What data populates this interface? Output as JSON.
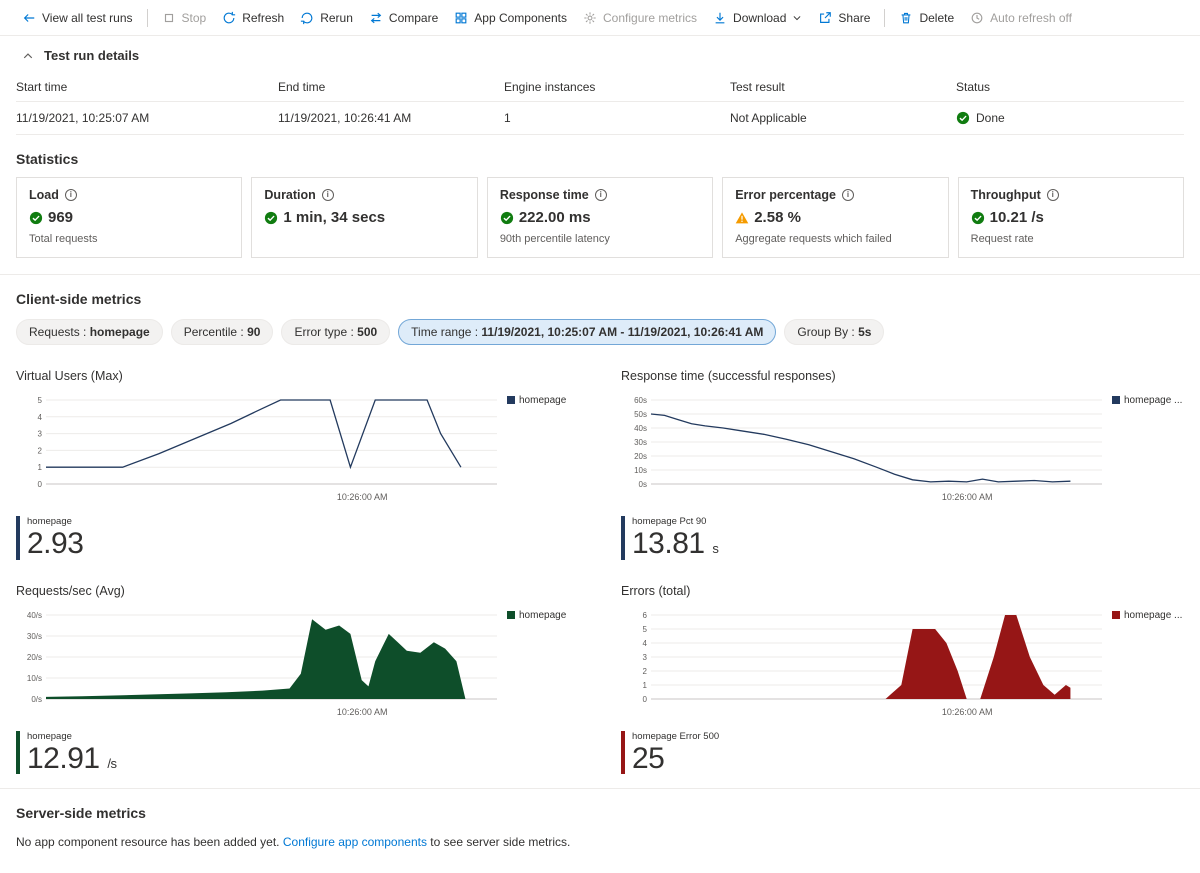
{
  "toolbar": {
    "items": [
      {
        "label": "View all test runs"
      },
      {
        "label": "Stop"
      },
      {
        "label": "Refresh"
      },
      {
        "label": "Rerun"
      },
      {
        "label": "Compare"
      },
      {
        "label": "App Components"
      },
      {
        "label": "Configure metrics"
      },
      {
        "label": "Download"
      },
      {
        "label": "Share"
      },
      {
        "label": "Delete"
      },
      {
        "label": "Auto refresh off"
      }
    ]
  },
  "test_run_details": {
    "title": "Test run details",
    "columns": [
      "Start time",
      "End time",
      "Engine instances",
      "Test result",
      "Status"
    ],
    "row": {
      "start_time": "11/19/2021, 10:25:07 AM",
      "end_time": "11/19/2021, 10:26:41 AM",
      "engine_instances": "1",
      "test_result": "Not Applicable",
      "status": "Done"
    }
  },
  "statistics": {
    "title": "Statistics",
    "cards": [
      {
        "title": "Load",
        "value": "969",
        "subtitle": "Total requests",
        "status": "ok"
      },
      {
        "title": "Duration",
        "value": "1 min, 34 secs",
        "subtitle": "",
        "status": "ok"
      },
      {
        "title": "Response time",
        "value": "222.00 ms",
        "subtitle": "90th percentile latency",
        "status": "ok"
      },
      {
        "title": "Error percentage",
        "value": "2.58 %",
        "subtitle": "Aggregate requests which failed",
        "status": "warning"
      },
      {
        "title": "Throughput",
        "value": "10.21 /s",
        "subtitle": "Request rate",
        "status": "ok"
      }
    ]
  },
  "client_metrics": {
    "title": "Client-side metrics",
    "pills": [
      {
        "label": "Requests : ",
        "value": "homepage",
        "selected": false
      },
      {
        "label": "Percentile : ",
        "value": "90",
        "selected": false
      },
      {
        "label": "Error type : ",
        "value": "500",
        "selected": false
      },
      {
        "label": "Time range : ",
        "value": "11/19/2021, 10:25:07 AM - 11/19/2021, 10:26:41 AM",
        "selected": true
      },
      {
        "label": "Group By : ",
        "value": "5s",
        "selected": false
      }
    ]
  },
  "charts": [
    {
      "type": "line",
      "title": "Virtual Users (Max)",
      "legend": "homepage",
      "color": "#233a5e",
      "ylim": [
        0,
        5
      ],
      "yticks": [
        {
          "v": 0,
          "label": "0"
        },
        {
          "v": 1,
          "label": "1"
        },
        {
          "v": 2,
          "label": "2"
        },
        {
          "v": 3,
          "label": "3"
        },
        {
          "v": 4,
          "label": "4"
        },
        {
          "v": 5,
          "label": "5"
        }
      ],
      "xlabel": "10:26:00 AM",
      "points": [
        [
          0,
          1
        ],
        [
          0.17,
          1
        ],
        [
          0.25,
          1.8
        ],
        [
          0.33,
          2.7
        ],
        [
          0.41,
          3.6
        ],
        [
          0.48,
          4.5
        ],
        [
          0.52,
          5
        ],
        [
          0.63,
          5
        ],
        [
          0.675,
          1
        ],
        [
          0.73,
          5
        ],
        [
          0.845,
          5
        ],
        [
          0.875,
          3
        ],
        [
          0.92,
          1
        ]
      ],
      "stat": {
        "label": "homepage",
        "value": "2.93",
        "unit": ""
      }
    },
    {
      "type": "line",
      "title": "Response time (successful responses)",
      "legend": "homepage ...",
      "color": "#233a5e",
      "ylim": [
        0,
        60
      ],
      "yticks": [
        {
          "v": 0,
          "label": "0s"
        },
        {
          "v": 10,
          "label": "10s"
        },
        {
          "v": 20,
          "label": "20s"
        },
        {
          "v": 30,
          "label": "30s"
        },
        {
          "v": 40,
          "label": "40s"
        },
        {
          "v": 50,
          "label": "50s"
        },
        {
          "v": 60,
          "label": "60s"
        }
      ],
      "xlabel": "10:26:00 AM",
      "points": [
        [
          0,
          50
        ],
        [
          0.03,
          49
        ],
        [
          0.06,
          46
        ],
        [
          0.09,
          43
        ],
        [
          0.12,
          41.5
        ],
        [
          0.16,
          40
        ],
        [
          0.2,
          38
        ],
        [
          0.25,
          35.5
        ],
        [
          0.3,
          32
        ],
        [
          0.35,
          28
        ],
        [
          0.4,
          23
        ],
        [
          0.45,
          18
        ],
        [
          0.5,
          12
        ],
        [
          0.54,
          7
        ],
        [
          0.58,
          3
        ],
        [
          0.62,
          1.5
        ],
        [
          0.66,
          2
        ],
        [
          0.7,
          1.5
        ],
        [
          0.735,
          3.5
        ],
        [
          0.77,
          1.5
        ],
        [
          0.81,
          2
        ],
        [
          0.85,
          2.5
        ],
        [
          0.89,
          1.5
        ],
        [
          0.93,
          2
        ]
      ],
      "stat": {
        "label": "homepage Pct 90",
        "value": "13.81",
        "unit": "s"
      }
    },
    {
      "type": "area",
      "title": "Requests/sec (Avg)",
      "legend": "homepage",
      "color": "#0e4e2a",
      "ylim": [
        0,
        40
      ],
      "yticks": [
        {
          "v": 0,
          "label": "0/s"
        },
        {
          "v": 10,
          "label": "10/s"
        },
        {
          "v": 20,
          "label": "20/s"
        },
        {
          "v": 30,
          "label": "30/s"
        },
        {
          "v": 40,
          "label": "40/s"
        }
      ],
      "xlabel": "10:26:00 AM",
      "points": [
        [
          0,
          1
        ],
        [
          0.08,
          1.3
        ],
        [
          0.16,
          1.7
        ],
        [
          0.24,
          2.2
        ],
        [
          0.32,
          2.7
        ],
        [
          0.4,
          3.2
        ],
        [
          0.48,
          4
        ],
        [
          0.54,
          5
        ],
        [
          0.565,
          12
        ],
        [
          0.59,
          38
        ],
        [
          0.62,
          33
        ],
        [
          0.65,
          35
        ],
        [
          0.675,
          31
        ],
        [
          0.7,
          9
        ],
        [
          0.715,
          6
        ],
        [
          0.73,
          18
        ],
        [
          0.76,
          31
        ],
        [
          0.78,
          27
        ],
        [
          0.8,
          23
        ],
        [
          0.83,
          22
        ],
        [
          0.86,
          27
        ],
        [
          0.885,
          24
        ],
        [
          0.91,
          18
        ],
        [
          0.93,
          0
        ]
      ],
      "stat": {
        "label": "homepage",
        "value": "12.91",
        "unit": "/s"
      }
    },
    {
      "type": "area",
      "title": "Errors (total)",
      "legend": "homepage ...",
      "color": "#961616",
      "ylim": [
        0,
        6
      ],
      "yticks": [
        {
          "v": 0,
          "label": "0"
        },
        {
          "v": 1,
          "label": "1"
        },
        {
          "v": 2,
          "label": "2"
        },
        {
          "v": 3,
          "label": "3"
        },
        {
          "v": 4,
          "label": "4"
        },
        {
          "v": 5,
          "label": "5"
        },
        {
          "v": 6,
          "label": "6"
        }
      ],
      "xlabel": "10:26:00 AM",
      "points": [
        [
          0,
          0
        ],
        [
          0.52,
          0
        ],
        [
          0.555,
          1
        ],
        [
          0.58,
          5
        ],
        [
          0.63,
          5
        ],
        [
          0.655,
          4
        ],
        [
          0.68,
          2
        ],
        [
          0.7,
          0
        ],
        [
          0.73,
          0
        ],
        [
          0.76,
          3
        ],
        [
          0.785,
          6
        ],
        [
          0.81,
          6
        ],
        [
          0.84,
          3
        ],
        [
          0.87,
          1
        ],
        [
          0.895,
          0.3
        ],
        [
          0.92,
          1
        ],
        [
          0.93,
          0.8
        ]
      ],
      "stat": {
        "label": "homepage Error 500",
        "value": "25",
        "unit": ""
      }
    }
  ],
  "server_metrics": {
    "title": "Server-side metrics",
    "text_before": "No app component resource has been added yet.",
    "link": "Configure app components",
    "text_after": "to see server side metrics."
  }
}
